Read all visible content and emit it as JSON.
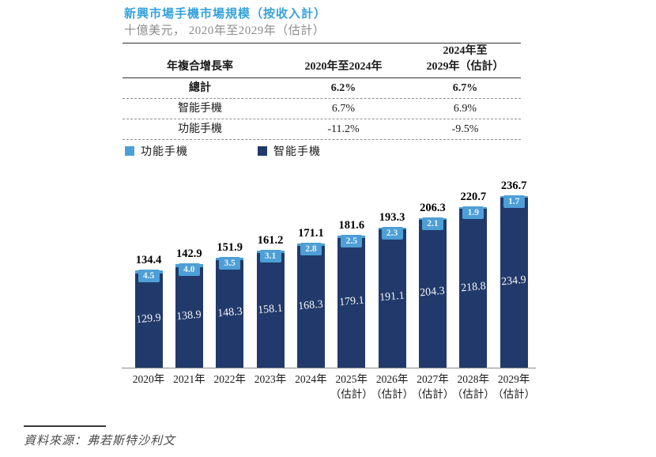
{
  "page": {
    "title": "新興市場手機市場規模（按收入計）",
    "subtitle": "十億美元， 2020年至2029年（估計）",
    "source": "資料來源：弗若斯特沙利文"
  },
  "colors": {
    "title_blue": "#36a2da",
    "smartphone_navy": "#213a6b",
    "feature_blue": "#4d9fd6"
  },
  "table": {
    "headers": {
      "metric": "年複合增長率",
      "period1": "2020年至2024年",
      "period2_line1": "2024年至",
      "period2_line2": "2029年（估計）"
    },
    "rows": [
      {
        "label": "總計",
        "period1": "6.2%",
        "period2": "6.7%",
        "bold": true
      },
      {
        "label": "智能手機",
        "period1": "6.7%",
        "period2": "6.9%",
        "bold": false
      },
      {
        "label": "功能手機",
        "period1": "-11.2%",
        "period2": "-9.5%",
        "bold": false
      }
    ]
  },
  "legend": {
    "items": [
      {
        "label": "功能手機",
        "color": "#4d9fd6"
      },
      {
        "label": "智能手機",
        "color": "#213a6b"
      }
    ]
  },
  "chart_data": {
    "type": "bar",
    "stacked": true,
    "title": "新興市場手機市場規模（按收入計）",
    "unit": "十億美元",
    "xlabel": "",
    "ylabel": "",
    "ylim": [
      0,
      240
    ],
    "grid": false,
    "legend_position": "top-left",
    "categories": [
      {
        "year": "2020年",
        "note": ""
      },
      {
        "year": "2021年",
        "note": ""
      },
      {
        "year": "2022年",
        "note": ""
      },
      {
        "year": "2023年",
        "note": ""
      },
      {
        "year": "2024年",
        "note": ""
      },
      {
        "year": "2025年",
        "note": "（估計）"
      },
      {
        "year": "2026年",
        "note": "（估計）"
      },
      {
        "year": "2027年",
        "note": "（估計）"
      },
      {
        "year": "2028年",
        "note": "（估計）"
      },
      {
        "year": "2029年",
        "note": "（估計）"
      }
    ],
    "series": [
      {
        "name": "智能手機",
        "color": "#213a6b",
        "values": [
          129.9,
          138.9,
          148.3,
          158.1,
          168.3,
          179.1,
          191.1,
          204.3,
          218.8,
          234.9
        ]
      },
      {
        "name": "功能手機",
        "color": "#4d9fd6",
        "values": [
          4.5,
          4.0,
          3.5,
          3.1,
          2.8,
          2.5,
          2.3,
          2.1,
          1.9,
          1.7
        ]
      }
    ],
    "totals": [
      134.4,
      142.9,
      151.9,
      161.2,
      171.1,
      181.6,
      193.3,
      206.3,
      220.7,
      236.7
    ]
  }
}
